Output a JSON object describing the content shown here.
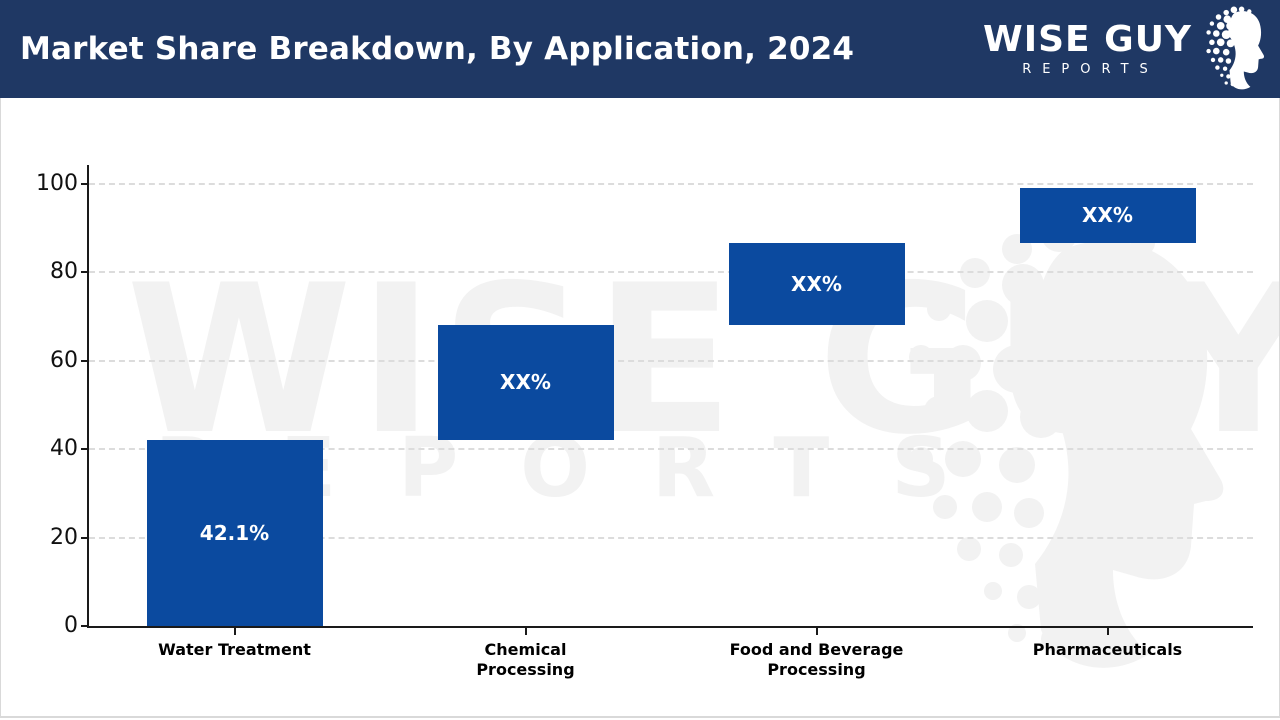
{
  "header": {
    "title": "Market Share Breakdown, By Application, 2024",
    "logo": {
      "brand_name": "WISE GUY",
      "brand_subtitle": "REPORTS"
    }
  },
  "watermark": {
    "line1": "WISE GUY",
    "line2": "REPORTS"
  },
  "chart_data": {
    "type": "bar",
    "subtype": "waterfall",
    "title": "Market Share Breakdown, By Application, 2024",
    "categories": [
      "Water Treatment",
      "Chemical Processing",
      "Food and Beverage Processing",
      "Pharmaceuticals"
    ],
    "category_label_lines": [
      [
        "Water Treatment"
      ],
      [
        "Chemical",
        "Processing"
      ],
      [
        "Food and Beverage",
        "Processing"
      ],
      [
        "Pharmaceuticals"
      ]
    ],
    "segments": [
      {
        "category": "Water Treatment",
        "start": 0,
        "end": 42.1,
        "value_label": "42.1%"
      },
      {
        "category": "Chemical Processing",
        "start": 42.1,
        "end": 68.1,
        "value_label": "XX%"
      },
      {
        "category": "Food and Beverage Processing",
        "start": 68.1,
        "end": 86.6,
        "value_label": "XX%"
      },
      {
        "category": "Pharmaceuticals",
        "start": 86.6,
        "end": 99.0,
        "value_label": "XX%"
      }
    ],
    "yticks": [
      0,
      20,
      40,
      60,
      80,
      100
    ],
    "ylim": [
      0,
      105
    ],
    "grid": "horizontal-dashed",
    "legend": "none",
    "colors": {
      "bar": "#0b4a9f",
      "grid": "#dcdcdc",
      "axis": "#1a1a1a",
      "value_label": "#ffffff"
    }
  },
  "colors": {
    "header_bg": "#1f3864",
    "watermark": "#f2f2f2",
    "border": "#d9d9d9"
  }
}
